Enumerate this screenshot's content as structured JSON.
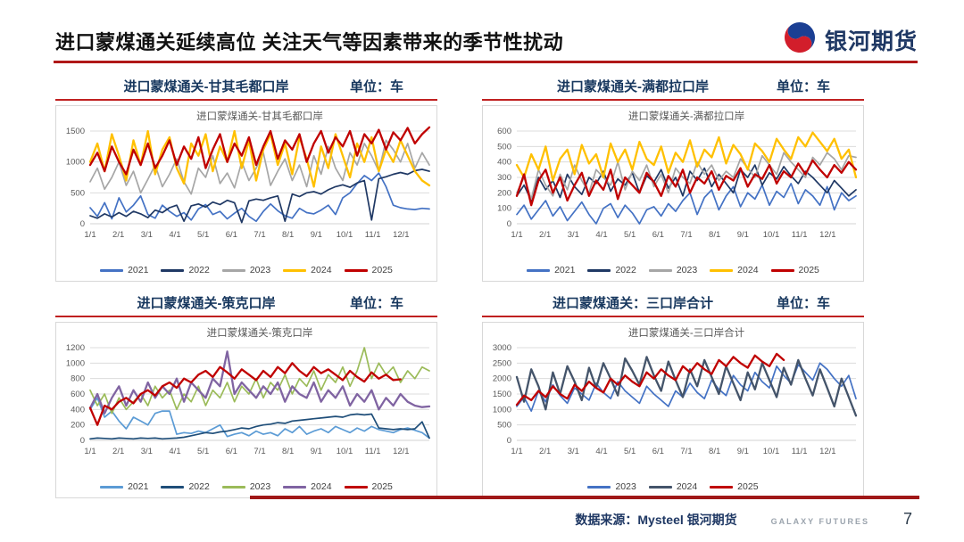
{
  "page_title": "进口蒙煤通关延续高位 关注天气等因素带来的季节性扰动",
  "logo": {
    "text": "银河期货"
  },
  "footer": {
    "source": "数据来源：Mysteel 银河期货",
    "brand": "GALAXY FUTURES",
    "page_number": "7"
  },
  "chart_data": [
    {
      "type": "line",
      "header": "进口蒙煤通关-甘其毛都口岸",
      "unit": "单位：车",
      "title": "进口蒙煤通关-甘其毛都口岸",
      "ylim": [
        0,
        1500
      ],
      "y_ticks": [
        0,
        500,
        1000,
        1500
      ],
      "x_labels": [
        "1/1",
        "2/1",
        "3/1",
        "4/1",
        "5/1",
        "6/1",
        "7/1",
        "8/1",
        "9/1",
        "10/1",
        "11/1",
        "12/1"
      ],
      "legend_position": "bottom",
      "grid": true,
      "series": [
        {
          "name": "2021",
          "color": "#4472C4",
          "values": [
            260,
            120,
            340,
            80,
            420,
            190,
            300,
            450,
            150,
            90,
            300,
            200,
            120,
            180,
            60,
            240,
            310,
            150,
            200,
            80,
            170,
            250,
            120,
            40,
            200,
            320,
            210,
            130,
            90,
            250,
            180,
            160,
            220,
            300,
            150,
            420,
            500,
            650,
            780,
            700,
            820,
            600,
            300,
            260,
            240,
            230,
            250,
            240
          ]
        },
        {
          "name": "2022",
          "color": "#1F3864",
          "values": [
            130,
            90,
            160,
            110,
            180,
            120,
            200,
            160,
            100,
            220,
            180,
            260,
            300,
            40,
            290,
            320,
            270,
            350,
            310,
            380,
            340,
            20,
            370,
            400,
            380,
            420,
            450,
            40,
            480,
            440,
            500,
            520,
            480,
            550,
            600,
            630,
            590,
            660,
            700,
            60,
            730,
            760,
            800,
            830,
            800,
            860,
            880,
            850
          ]
        },
        {
          "name": "2023",
          "color": "#A6A6A6",
          "values": [
            680,
            900,
            560,
            750,
            1000,
            620,
            850,
            500,
            720,
            950,
            600,
            800,
            1050,
            680,
            480,
            900,
            750,
            1100,
            650,
            820,
            580,
            1000,
            700,
            900,
            1150,
            620,
            850,
            1050,
            700,
            950,
            600,
            1100,
            800,
            1250,
            900,
            700,
            1150,
            950,
            1300,
            1100,
            850,
            1350,
            1200,
            1000,
            1300,
            900,
            1150,
            950
          ]
        },
        {
          "name": "2024",
          "color": "#FFC000",
          "values": [
            1000,
            1300,
            850,
            1450,
            1100,
            700,
            1350,
            950,
            1500,
            800,
            1200,
            1400,
            900,
            650,
            1300,
            1100,
            1450,
            850,
            1250,
            1000,
            1500,
            900,
            1350,
            700,
            1200,
            1450,
            950,
            1300,
            800,
            1400,
            1050,
            600,
            1250,
            900,
            1450,
            1100,
            750,
            1300,
            1000,
            1400,
            850,
            1200,
            1000,
            1350,
            1100,
            850,
            700,
            620
          ]
        },
        {
          "name": "2025",
          "color": "#C00000",
          "values": [
            950,
            1150,
            850,
            1250,
            1000,
            800,
            1200,
            950,
            1300,
            900,
            1100,
            1350,
            950,
            1250,
            1050,
            1400,
            900,
            1200,
            1450,
            1000,
            1300,
            1100,
            1400,
            950,
            1250,
            1500,
            1050,
            1350,
            1200,
            1450,
            1000,
            1300,
            1500,
            1150,
            1400,
            1250,
            1500,
            1100,
            1450,
            1300,
            1520,
            1200,
            1480,
            1350,
            1550,
            1300,
            1450,
            1560
          ]
        }
      ]
    },
    {
      "type": "line",
      "header": "进口蒙煤通关-满都拉口岸",
      "unit": "单位：车",
      "title": "进口蒙煤通关-满都拉口岸",
      "ylim": [
        0,
        600
      ],
      "y_ticks": [
        0,
        100,
        200,
        300,
        400,
        500,
        600
      ],
      "x_labels": [
        "1/1",
        "2/1",
        "3/1",
        "4/1",
        "5/1",
        "6/1",
        "7/1",
        "8/1",
        "9/1",
        "10/1",
        "11/1",
        "12/1"
      ],
      "legend_position": "bottom",
      "grid": true,
      "series": [
        {
          "name": "2021",
          "color": "#4472C4",
          "values": [
            60,
            120,
            30,
            90,
            150,
            50,
            110,
            20,
            80,
            140,
            60,
            0,
            100,
            130,
            40,
            120,
            70,
            0,
            90,
            110,
            50,
            130,
            80,
            150,
            200,
            60,
            170,
            220,
            90,
            180,
            240,
            110,
            200,
            160,
            250,
            120,
            210,
            170,
            260,
            130,
            220,
            180,
            120,
            240,
            90,
            200,
            150,
            180
          ]
        },
        {
          "name": "2022",
          "color": "#1F3864",
          "values": [
            180,
            250,
            150,
            300,
            220,
            280,
            170,
            320,
            240,
            190,
            300,
            260,
            340,
            210,
            290,
            250,
            330,
            200,
            310,
            270,
            350,
            230,
            300,
            180,
            340,
            280,
            360,
            240,
            320,
            260,
            200,
            350,
            300,
            380,
            250,
            330,
            290,
            370,
            310,
            260,
            340,
            300,
            250,
            200,
            280,
            230,
            180,
            220
          ]
        },
        {
          "name": "2023",
          "color": "#A6A6A6",
          "values": [
            200,
            300,
            160,
            350,
            250,
            180,
            320,
            220,
            380,
            280,
            200,
            350,
            300,
            250,
            400,
            220,
            340,
            280,
            380,
            240,
            320,
            200,
            360,
            300,
            260,
            400,
            320,
            380,
            280,
            340,
            300,
            420,
            360,
            300,
            440,
            380,
            320,
            460,
            400,
            350,
            300,
            430,
            380,
            460,
            420,
            350,
            440,
            430
          ]
        },
        {
          "name": "2024",
          "color": "#FFC000",
          "values": [
            380,
            300,
            450,
            350,
            500,
            280,
            420,
            480,
            320,
            510,
            390,
            450,
            300,
            520,
            400,
            480,
            350,
            530,
            420,
            380,
            500,
            330,
            460,
            400,
            540,
            370,
            480,
            430,
            560,
            390,
            510,
            450,
            350,
            520,
            470,
            400,
            550,
            480,
            420,
            560,
            500,
            590,
            530,
            470,
            550,
            420,
            480,
            300
          ]
        },
        {
          "name": "2025",
          "color": "#C00000",
          "values": [
            180,
            320,
            120,
            280,
            350,
            200,
            300,
            150,
            250,
            330,
            180,
            280,
            220,
            350,
            160,
            300,
            250,
            200,
            330,
            270,
            180,
            310,
            240,
            350,
            200,
            300,
            260,
            340,
            220,
            310,
            280,
            360,
            240,
            320,
            290,
            380,
            260,
            340,
            300,
            390,
            320,
            410,
            350,
            300,
            380,
            330,
            400,
            350
          ]
        }
      ]
    },
    {
      "type": "line",
      "header": "进口蒙煤通关-策克口岸",
      "unit": "单位：车",
      "title": "进口蒙煤通关-策克口岸",
      "ylim": [
        0,
        1200
      ],
      "y_ticks": [
        0,
        200,
        400,
        600,
        800,
        1000,
        1200
      ],
      "x_labels": [
        "1/1",
        "2/1",
        "3/1",
        "4/1",
        "5/1",
        "6/1",
        "7/1",
        "8/1",
        "9/1",
        "10/1",
        "11/1",
        "12/1"
      ],
      "legend_position": "bottom",
      "grid": true,
      "series": [
        {
          "name": "2021",
          "color": "#5B9BD5",
          "values": [
            400,
            550,
            300,
            380,
            250,
            150,
            300,
            250,
            200,
            350,
            380,
            380,
            80,
            100,
            90,
            120,
            100,
            150,
            200,
            50,
            80,
            100,
            60,
            120,
            80,
            100,
            60,
            150,
            100,
            180,
            80,
            120,
            150,
            100,
            180,
            140,
            100,
            160,
            120,
            180,
            140,
            120,
            100,
            140,
            160,
            130,
            100,
            30
          ]
        },
        {
          "name": "2022",
          "color": "#1F4E79",
          "values": [
            20,
            30,
            25,
            20,
            30,
            25,
            20,
            30,
            25,
            30,
            20,
            25,
            30,
            40,
            60,
            80,
            100,
            90,
            110,
            120,
            140,
            160,
            150,
            180,
            200,
            210,
            230,
            220,
            250,
            260,
            270,
            280,
            290,
            300,
            310,
            300,
            330,
            340,
            330,
            340,
            160,
            150,
            140,
            150,
            140,
            150,
            240,
            30
          ]
        },
        {
          "name": "2023",
          "color": "#9BBB59",
          "values": [
            650,
            450,
            600,
            350,
            550,
            400,
            500,
            600,
            450,
            700,
            550,
            650,
            400,
            600,
            500,
            700,
            450,
            650,
            550,
            750,
            500,
            700,
            600,
            800,
            550,
            750,
            650,
            850,
            600,
            800,
            700,
            900,
            650,
            850,
            750,
            950,
            700,
            900,
            1200,
            800,
            1000,
            850,
            950,
            750,
            900,
            800,
            950,
            900
          ]
        },
        {
          "name": "2024",
          "color": "#8064A2",
          "values": [
            420,
            600,
            350,
            550,
            700,
            450,
            650,
            500,
            750,
            550,
            700,
            600,
            800,
            500,
            750,
            650,
            550,
            800,
            700,
            1150,
            600,
            750,
            650,
            550,
            700,
            600,
            750,
            500,
            700,
            600,
            550,
            750,
            500,
            650,
            550,
            700,
            450,
            600,
            500,
            650,
            400,
            550,
            450,
            600,
            500,
            450,
            430,
            440
          ]
        },
        {
          "name": "2025",
          "color": "#C00000",
          "values": [
            420,
            200,
            450,
            400,
            500,
            550,
            480,
            600,
            650,
            580,
            700,
            750,
            680,
            800,
            750,
            850,
            900,
            820,
            950,
            880,
            800,
            920,
            850,
            780,
            900,
            820,
            950,
            870,
            1000,
            900,
            830,
            950,
            870,
            920,
            850,
            780,
            900,
            820,
            760,
            880,
            800,
            850,
            780,
            790
          ]
        }
      ]
    },
    {
      "type": "line",
      "header": "进口蒙煤通关：三口岸合计",
      "unit": "单位：车",
      "title": "进口蒙煤通关-三口岸合计",
      "ylim": [
        0,
        3000
      ],
      "y_ticks": [
        0,
        500,
        1000,
        1500,
        2000,
        2500,
        3000
      ],
      "x_labels": [
        "1/1",
        "2/1",
        "3/1",
        "4/1",
        "5/1",
        "6/1",
        "7/1",
        "8/1",
        "9/1",
        "10/1",
        "11/1",
        "12/1"
      ],
      "legend_position": "bottom",
      "grid": true,
      "series": [
        {
          "name": "2023",
          "color": "#4472C4",
          "values": [
            1100,
            1400,
            950,
            1600,
            1250,
            1800,
            1450,
            1200,
            1700,
            1500,
            1300,
            1850,
            1550,
            1350,
            1900,
            1600,
            1400,
            1200,
            1750,
            1500,
            1300,
            1100,
            1600,
            1400,
            1850,
            1550,
            1350,
            1950,
            1650,
            1450,
            2100,
            1800,
            1600,
            2200,
            1900,
            1700,
            2400,
            2100,
            1850,
            2450,
            2200,
            1950,
            2500,
            2300,
            2000,
            1750,
            2100,
            1350
          ]
        },
        {
          "name": "2024",
          "color": "#44546A",
          "values": [
            2050,
            1250,
            2300,
            1750,
            1000,
            2200,
            1500,
            2400,
            1900,
            1300,
            2350,
            1700,
            2500,
            2000,
            1450,
            2650,
            2250,
            1800,
            2700,
            2100,
            1600,
            2550,
            1950,
            1400,
            2300,
            1750,
            2600,
            2050,
            1500,
            2400,
            1850,
            1300,
            2200,
            1650,
            2500,
            1950,
            1400,
            2350,
            1800,
            2600,
            2000,
            1450,
            2300,
            1700,
            1100,
            2000,
            1400,
            800
          ]
        },
        {
          "name": "2025",
          "color": "#C00000",
          "values": [
            1150,
            1450,
            1300,
            1600,
            1400,
            1750,
            1500,
            1350,
            1800,
            1600,
            1900,
            1700,
            1550,
            2000,
            1800,
            2100,
            1900,
            1750,
            2200,
            2000,
            2300,
            2100,
            1950,
            2400,
            2200,
            2500,
            2300,
            2150,
            2600,
            2400,
            2700,
            2500,
            2350,
            2750,
            2550,
            2400,
            2800,
            2600
          ]
        }
      ]
    }
  ]
}
